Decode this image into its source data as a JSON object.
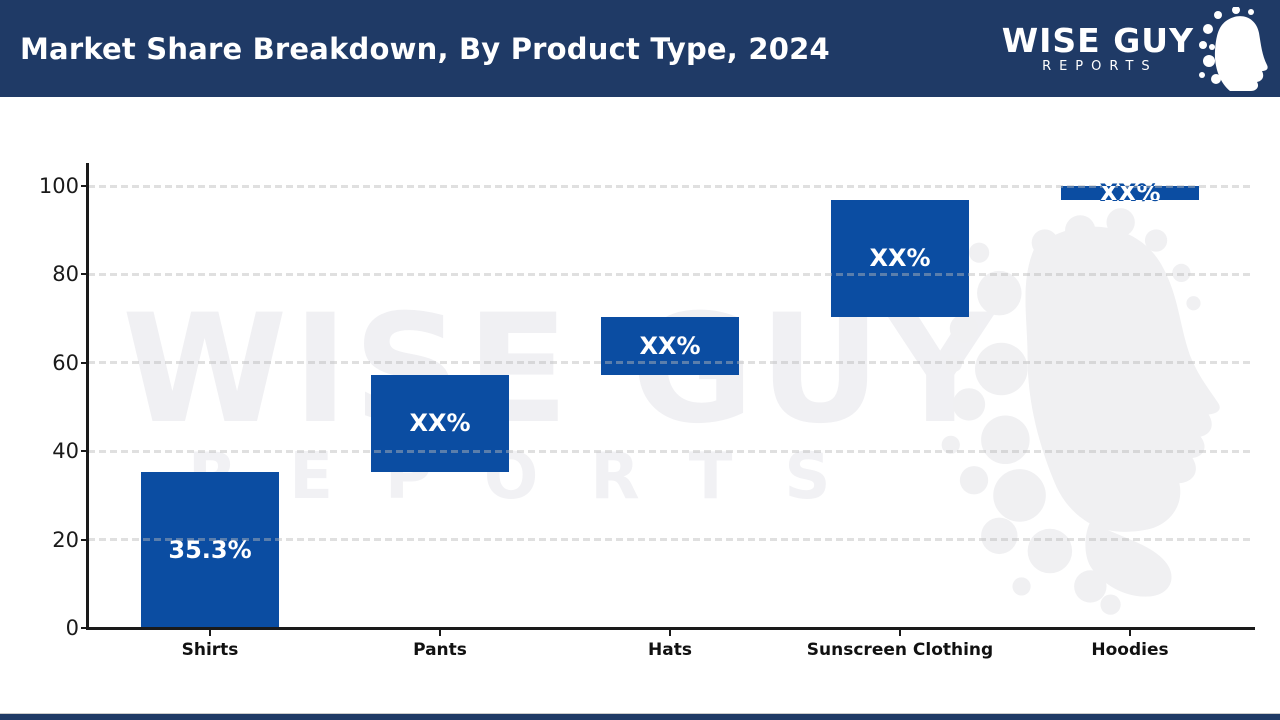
{
  "header": {
    "title": "Market Share Breakdown, By Product Type, 2024",
    "logo": {
      "line1": "WISE GUY",
      "line2": "REPORTS"
    }
  },
  "watermark": {
    "line1": "WISE GUY",
    "line2": "REPORTS"
  },
  "chart_data": {
    "type": "bar",
    "subtype": "waterfall",
    "title": "Market Share Breakdown, By Product Type, 2024",
    "categories": [
      "Shirts",
      "Pants",
      "Hats",
      "Sunscreen Clothing",
      "Hoodies"
    ],
    "segments": [
      {
        "category": "Shirts",
        "start": 0,
        "end": 35.3,
        "label": "35.3%"
      },
      {
        "category": "Pants",
        "start": 35.3,
        "end": 57.3,
        "label": "XX%"
      },
      {
        "category": "Hats",
        "start": 57.3,
        "end": 70.3,
        "label": "XX%"
      },
      {
        "category": "Sunscreen Clothing",
        "start": 70.3,
        "end": 96.9,
        "label": "XX%"
      },
      {
        "category": "Hoodies",
        "start": 96.9,
        "end": 100,
        "label": "XX%"
      }
    ],
    "xlabel": "",
    "ylabel": "",
    "ylim": [
      0,
      105
    ],
    "yticks": [
      0,
      20,
      40,
      60,
      80,
      100
    ],
    "grid": "horizontal dashed, drawn over bars",
    "legend": "none",
    "bar_color": "#0b4da2",
    "bar_label_color": "#ffffff"
  },
  "colors": {
    "header_bg": "#1f3a66",
    "footer_bg": "#1f3a66",
    "bar": "#0b4da2",
    "axis": "#1a1a1a",
    "watermark": "#f0f0f3",
    "background": "#ffffff"
  }
}
